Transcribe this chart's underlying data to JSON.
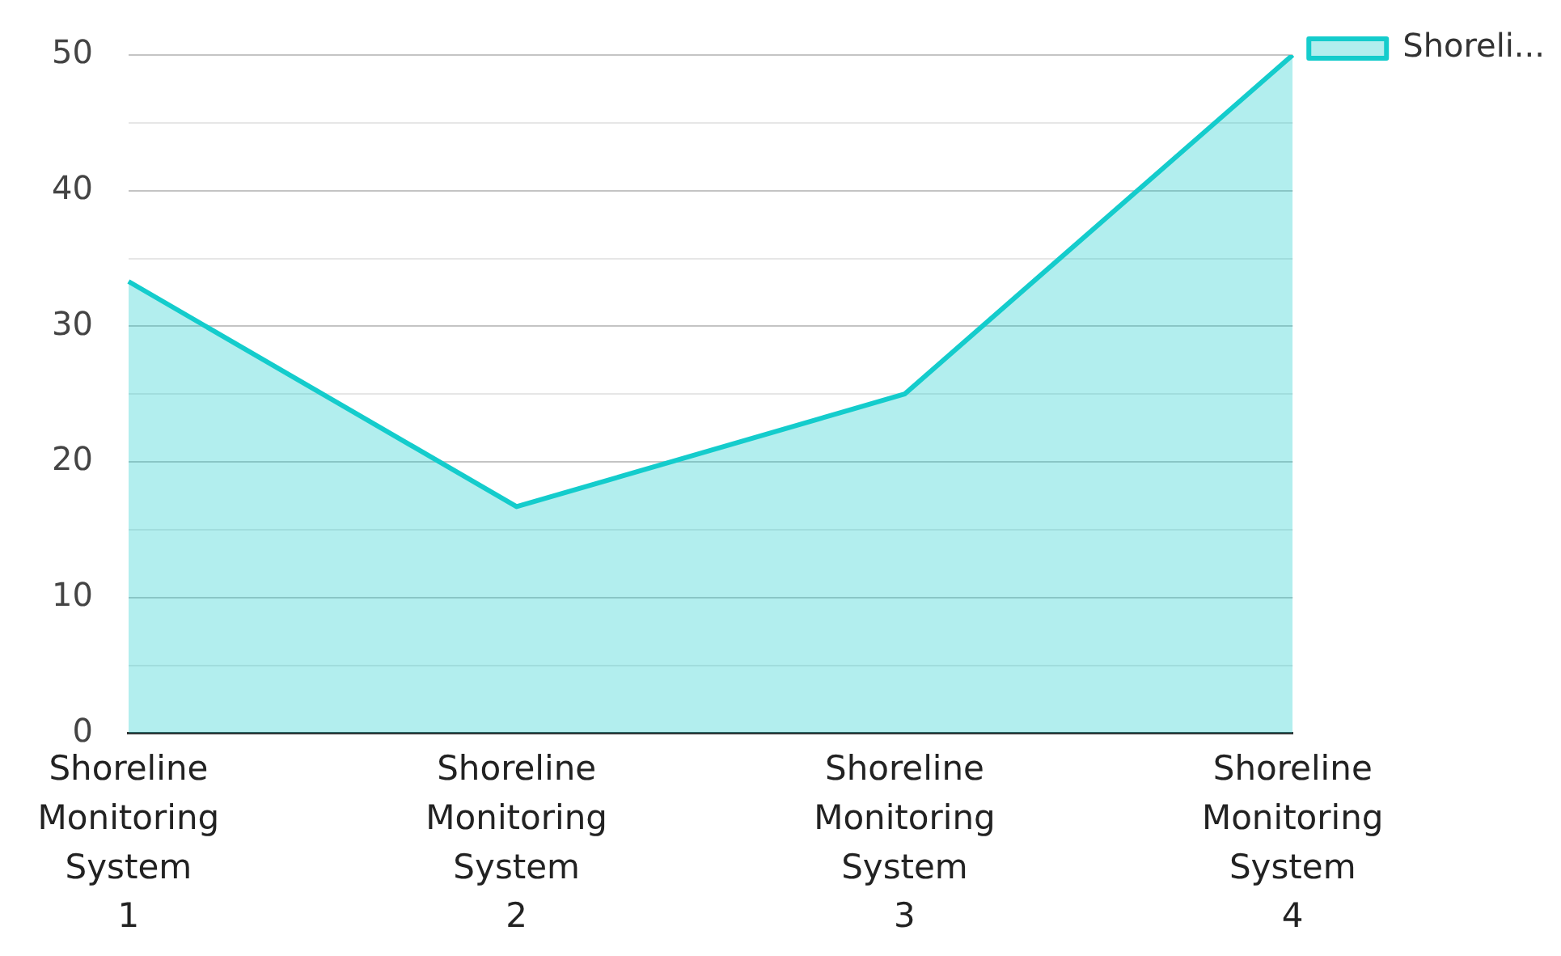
{
  "chart_data": {
    "type": "area",
    "categories": [
      "Shoreline Monitoring System 1",
      "Shoreline Monitoring System 2",
      "Shoreline Monitoring System 3",
      "Shoreline Monitoring System 4"
    ],
    "series": [
      {
        "name": "Shoreli...",
        "color": "#14cccc",
        "values": [
          33.3,
          16.7,
          25,
          50
        ]
      }
    ],
    "ylim": [
      0,
      50
    ],
    "yticks": [
      0,
      {
        "value": 5,
        "label": null
      },
      10,
      {
        "value": 15,
        "label": null
      },
      20,
      {
        "value": 25,
        "label": null
      },
      30,
      {
        "value": 35,
        "label": null
      },
      40,
      {
        "value": 45,
        "label": null
      },
      50
    ],
    "grid": "y",
    "legend": "top right"
  }
}
